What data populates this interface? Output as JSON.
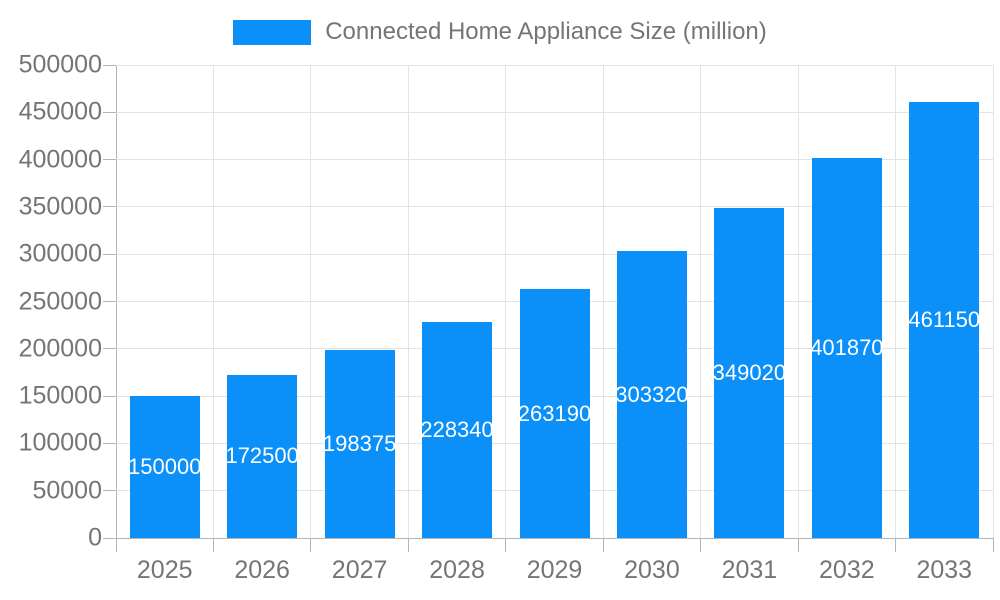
{
  "chart_data": {
    "type": "bar",
    "title": "Connected Home Appliance Size (million)",
    "legend": {
      "label": "Connected Home Appliance Size (million)",
      "position": "top"
    },
    "categories": [
      "2025",
      "2026",
      "2027",
      "2028",
      "2029",
      "2030",
      "2031",
      "2032",
      "2033"
    ],
    "values": [
      150000,
      172500,
      198375,
      228340,
      263190,
      303320,
      349020,
      401870,
      461150
    ],
    "value_labels": [
      "150000",
      "172500",
      "198375",
      "228340",
      "263190",
      "303320",
      "349020",
      "401870",
      "461150"
    ],
    "xlabel": "",
    "ylabel": "",
    "ylim": [
      0,
      500000
    ],
    "ytick_step": 50000,
    "ytick_labels": [
      "0",
      "50000",
      "100000",
      "150000",
      "200000",
      "250000",
      "300000",
      "350000",
      "400000",
      "450000",
      "500000"
    ],
    "grid": true,
    "colors": {
      "bar": "#0a90f8",
      "axis_text": "#757575",
      "value_text": "#ffffff",
      "grid_line": "#e3e3e3",
      "axis_line": "#b5b5b5",
      "background": "#ffffff"
    }
  }
}
